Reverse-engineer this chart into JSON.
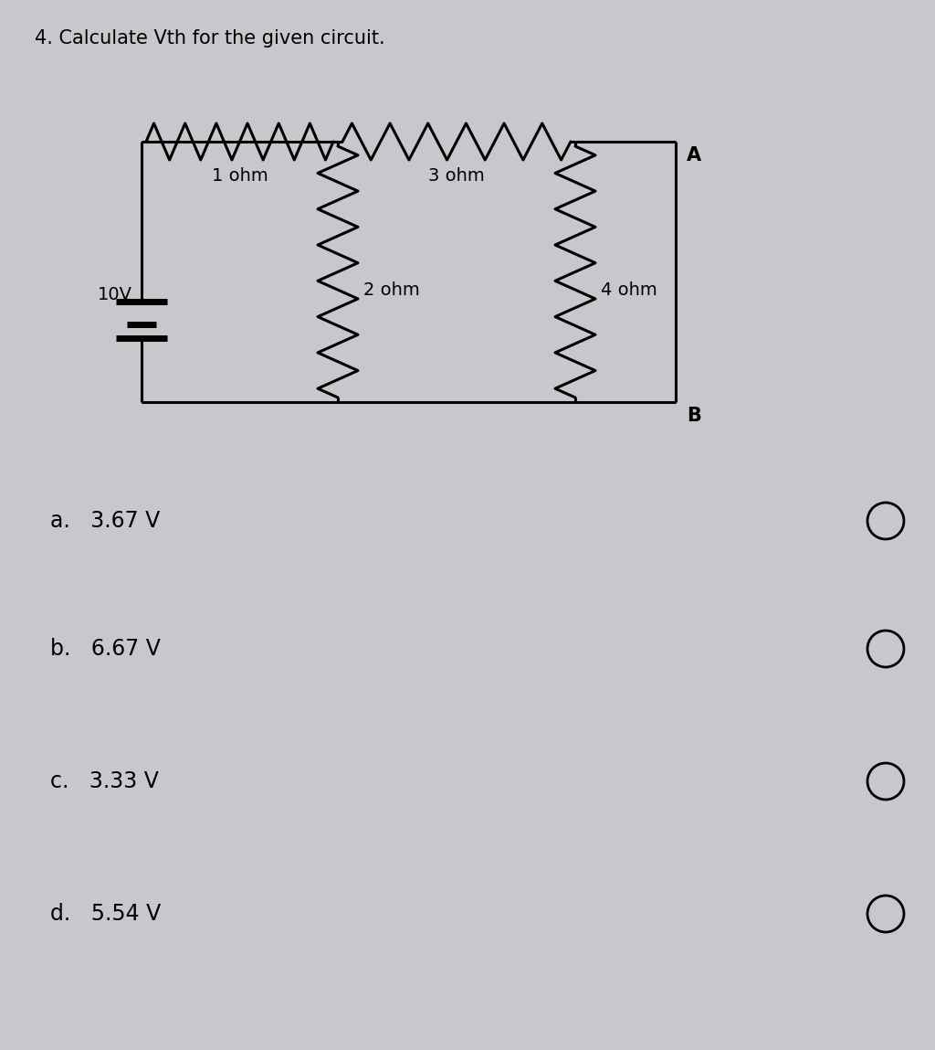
{
  "title": "4. Calculate Vth for the given circuit.",
  "title_fontsize": 15,
  "bg_color": "#c8c8cc",
  "options": [
    {
      "label": "a.",
      "value": "3.67 V"
    },
    {
      "label": "b.",
      "value": "6.67 V"
    },
    {
      "label": "c.",
      "value": "3.33 V"
    },
    {
      "label": "d.",
      "value": "5.54 V"
    }
  ],
  "circuit": {
    "voltage_label": "10V",
    "r1_label": "1 ohm",
    "r2_label": "2 ohm",
    "r3_label": "3 ohm",
    "r4_label": "4 ohm",
    "node_a": "A",
    "node_b": "B"
  }
}
